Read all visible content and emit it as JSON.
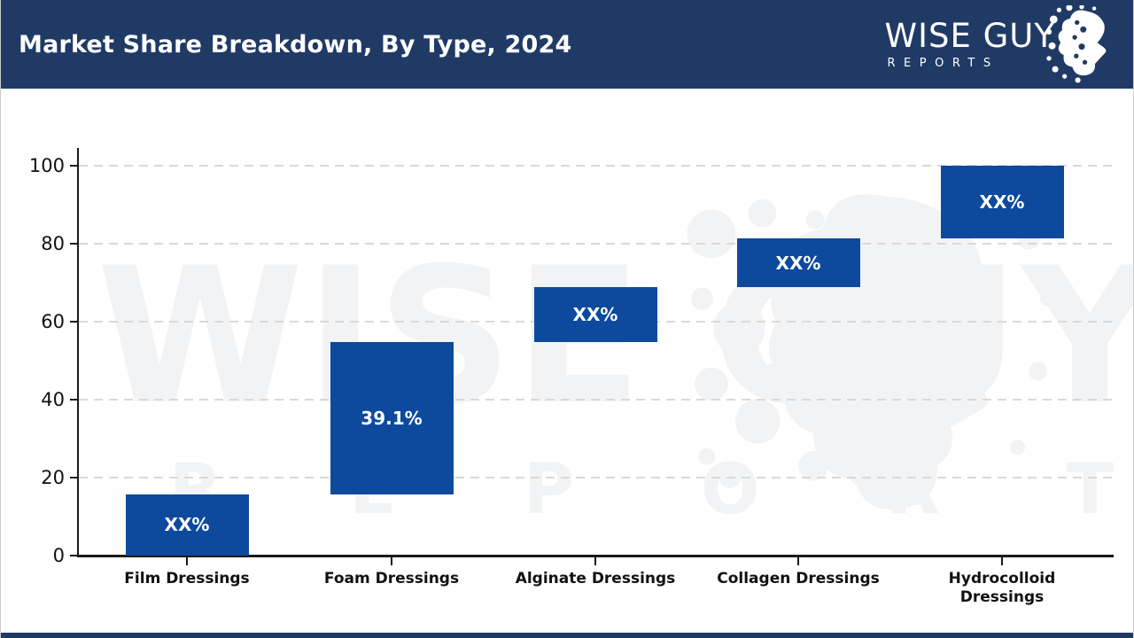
{
  "header": {
    "title": "Market Share Breakdown, By Type, 2024",
    "logo": {
      "brand": "WISE GUY",
      "sub": "REPORTS"
    }
  },
  "watermark": {
    "brand": "WISE GUY",
    "sub": "R E P O R T S"
  },
  "chart_data": {
    "type": "bar",
    "subtype": "waterfall",
    "title": "Market Share Breakdown, By Type, 2024",
    "categories": [
      "Film Dressings",
      "Foam Dressings",
      "Alginate Dressings",
      "Collagen Dressings",
      "Hydrocolloid Dressings"
    ],
    "segments": [
      {
        "category": "Film Dressings",
        "start": 0,
        "end": 15.7,
        "label": "XX%"
      },
      {
        "category": "Foam Dressings",
        "start": 15.7,
        "end": 54.8,
        "label": "39.1%"
      },
      {
        "category": "Alginate Dressings",
        "start": 54.8,
        "end": 68.9,
        "label": "XX%"
      },
      {
        "category": "Collagen Dressings",
        "start": 68.9,
        "end": 81.3,
        "label": "XX%"
      },
      {
        "category": "Hydrocolloid Dressings",
        "start": 81.3,
        "end": 100,
        "label": "XX%"
      }
    ],
    "xlabel": "",
    "ylabel": "",
    "ylim": [
      0,
      100
    ],
    "yticks": [
      0,
      20,
      40,
      60,
      80,
      100
    ],
    "grid": "horizontal-dashed",
    "legend": "none",
    "bar_color": "#0d4a9e",
    "bar_label_color": "#ffffff"
  },
  "colors": {
    "header_bg": "#203a66",
    "footer_bg": "#203a66",
    "page_bg": "#ffffff",
    "title_text": "#ffffff",
    "axis": "#1a1a1a",
    "tick_label": "#111111",
    "gridline": "#d9d9d9",
    "watermark": "#f2f3f5",
    "border": "#cccccc"
  }
}
